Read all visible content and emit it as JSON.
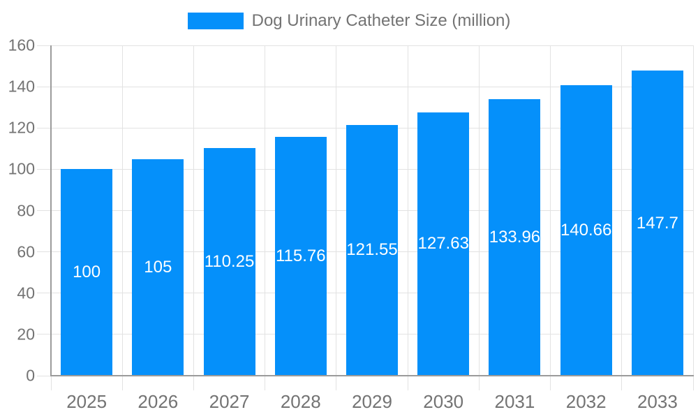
{
  "chart_data": {
    "type": "bar",
    "title": "Dog Urinary Catheter Size (million)",
    "categories": [
      "2025",
      "2026",
      "2027",
      "2028",
      "2029",
      "2030",
      "2031",
      "2032",
      "2033"
    ],
    "values": [
      100,
      105,
      110.25,
      115.76,
      121.55,
      127.63,
      133.96,
      140.66,
      147.7
    ],
    "value_labels": [
      "100",
      "105",
      "110.25",
      "115.76",
      "121.55",
      "127.63",
      "133.96",
      "140.66",
      "147.7"
    ],
    "xlabel": "",
    "ylabel": "",
    "ylim": [
      0,
      160
    ],
    "yticks": [
      0,
      20,
      40,
      60,
      80,
      100,
      120,
      140,
      160
    ],
    "ytick_labels": [
      "0",
      "20",
      "40",
      "60",
      "80",
      "100",
      "120",
      "140",
      "160"
    ],
    "grid": true,
    "legend_position": "top",
    "colors": {
      "bar": "#0590fa",
      "axis_line": "#9b9b9b",
      "grid_line": "#e2e2e2",
      "axis_text": "#737373",
      "legend_text": "#737373",
      "value_text": "#ffffff",
      "background": "#ffffff"
    }
  }
}
